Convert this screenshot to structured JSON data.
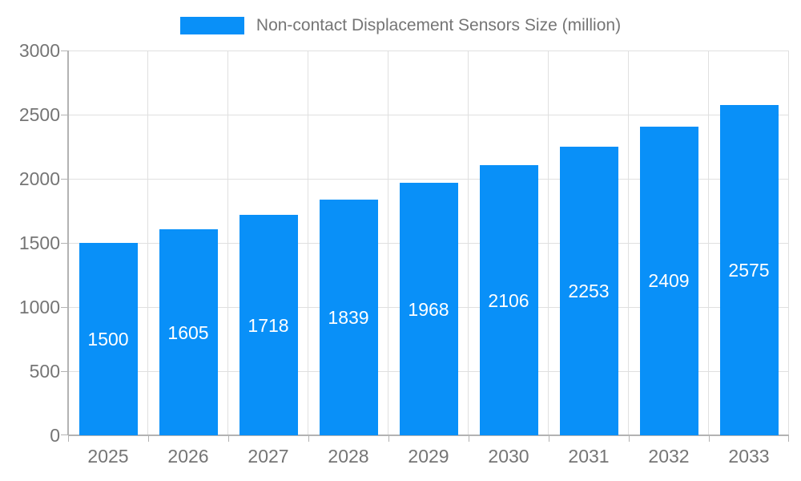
{
  "chart_data": {
    "type": "bar",
    "title": "Non-contact Displacement Sensors Size (million)",
    "xlabel": "",
    "ylabel": "",
    "categories": [
      "2025",
      "2026",
      "2027",
      "2028",
      "2029",
      "2030",
      "2031",
      "2032",
      "2033"
    ],
    "series": [
      {
        "name": "Non-contact Displacement Sensors Size (million)",
        "values": [
          1500,
          1605,
          1718,
          1839,
          1968,
          2106,
          2253,
          2409,
          2575
        ]
      }
    ],
    "ylim": [
      0,
      3000
    ],
    "yticks": [
      0,
      500,
      1000,
      1500,
      2000,
      2500,
      3000
    ],
    "grid": true,
    "legend_position": "top-center",
    "bar_label_position": "inside-center",
    "colors": {
      "bar": "#0990F8",
      "bar_label": "#FFFFFF",
      "grid_line": "#E0E0E0",
      "axis_line": "#B3B3B3",
      "tick_label": "#757575",
      "legend_text": "#757575",
      "background": "#FFFFFF"
    }
  }
}
